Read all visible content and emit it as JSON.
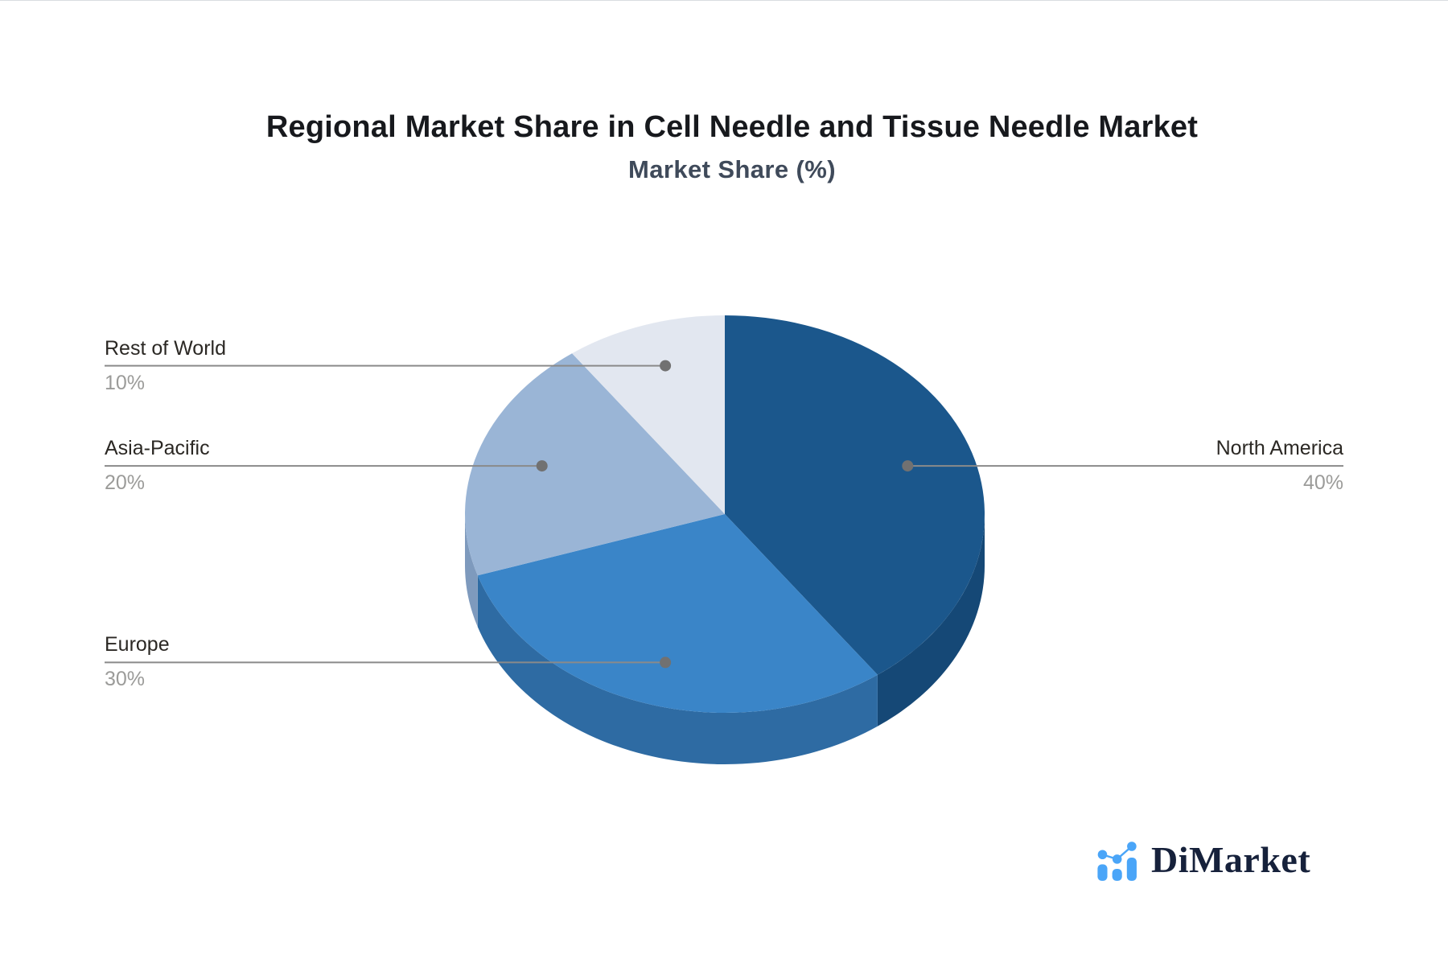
{
  "header": {
    "title": "Regional Market Share in Cell Needle and Tissue Needle Market",
    "subtitle": "Market Share (%)"
  },
  "chart_data": {
    "type": "pie",
    "title": "Regional Market Share in Cell Needle and Tissue Needle Market",
    "subtitle": "Market Share (%)",
    "unit": "%",
    "effect": "3d",
    "direction": "clockwise",
    "start_angle_deg": 0,
    "legend_position": "callout-labels",
    "slices": [
      {
        "label": "North America",
        "value": 40,
        "pct": "40%",
        "color": "#1B578C",
        "side_color": "#154876",
        "callout_side": "right"
      },
      {
        "label": "Europe",
        "value": 30,
        "pct": "30%",
        "color": "#3A85C8",
        "side_color": "#2E6BA3",
        "callout_side": "left"
      },
      {
        "label": "Asia-Pacific",
        "value": 20,
        "pct": "20%",
        "color": "#9AB5D6",
        "side_color": "#7E9ABD",
        "callout_side": "left"
      },
      {
        "label": "Rest of World",
        "value": 10,
        "pct": "10%",
        "color": "#E2E7F0",
        "side_color": "#C2CBD9",
        "callout_side": "left"
      }
    ],
    "callout_line_color": "#8a8a8a",
    "callout_dot_color": "#717171"
  },
  "branding": {
    "logo_text": "DiMarket",
    "logo_icon": "bar-chart-logo-icon",
    "icon_color": "#4AA5F8",
    "text_color": "#16213B"
  }
}
